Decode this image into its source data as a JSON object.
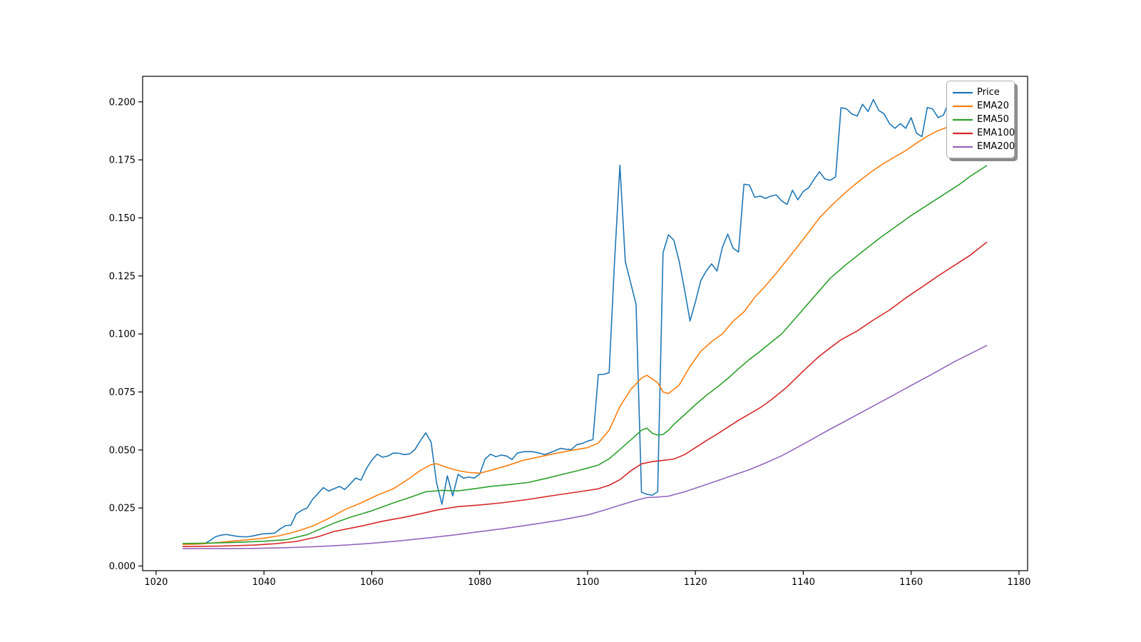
{
  "figure": {
    "background_color": "#ffffff",
    "spine_color": "#000000",
    "tick_label_color": "#000000"
  },
  "axes": {
    "x_ticks": [
      "1020",
      "1040",
      "1060",
      "1080",
      "1100",
      "1120",
      "1140",
      "1160",
      "1180"
    ],
    "x_tick_values": [
      1020,
      1040,
      1060,
      1080,
      1100,
      1120,
      1140,
      1160,
      1180
    ],
    "y_ticks": [
      "0.000",
      "0.025",
      "0.050",
      "0.075",
      "0.100",
      "0.125",
      "0.150",
      "0.175",
      "0.200"
    ],
    "y_tick_values": [
      0.0,
      0.025,
      0.05,
      0.075,
      0.1,
      0.125,
      0.15,
      0.175,
      0.2
    ]
  },
  "legend": {
    "position": "upper right",
    "items": [
      {
        "label": "Price",
        "color": "#1f77b4"
      },
      {
        "label": "EMA20",
        "color": "#ff7f0e"
      },
      {
        "label": "EMA50",
        "color": "#2ca02c"
      },
      {
        "label": "EMA100",
        "color": "#d62728"
      },
      {
        "label": "EMA200",
        "color": "#9467bd"
      }
    ]
  },
  "chart_data": {
    "type": "line",
    "title": "",
    "xlabel": "",
    "ylabel": "",
    "grid": false,
    "legend_position": "upper right",
    "xlim": [
      1017.5,
      1181.6
    ],
    "ylim": [
      -0.002,
      0.211
    ],
    "series": [
      {
        "name": "Price",
        "color": "#1f77b4",
        "x": [
          1025,
          1026,
          1027,
          1028,
          1029,
          1030,
          1031,
          1032,
          1033,
          1034,
          1035,
          1036,
          1037,
          1038,
          1039,
          1040,
          1041,
          1042,
          1043,
          1044,
          1045,
          1046,
          1047,
          1048,
          1049,
          1050,
          1051,
          1052,
          1053,
          1054,
          1055,
          1056,
          1057,
          1058,
          1059,
          1060,
          1061,
          1062,
          1063,
          1064,
          1065,
          1066,
          1067,
          1068,
          1069,
          1070,
          1071,
          1072,
          1073,
          1074,
          1075,
          1076,
          1077,
          1078,
          1079,
          1080,
          1081,
          1082,
          1083,
          1084,
          1085,
          1086,
          1087,
          1088,
          1089,
          1090,
          1091,
          1092,
          1093,
          1094,
          1095,
          1096,
          1097,
          1098,
          1099,
          1100,
          1101,
          1102,
          1103,
          1104,
          1105,
          1106,
          1107,
          1108,
          1109,
          1110,
          1111,
          1112,
          1113,
          1114,
          1115,
          1116,
          1117,
          1118,
          1119,
          1120,
          1121,
          1122,
          1123,
          1124,
          1125,
          1126,
          1127,
          1128,
          1129,
          1130,
          1131,
          1132,
          1133,
          1134,
          1135,
          1136,
          1137,
          1138,
          1139,
          1140,
          1141,
          1142,
          1143,
          1144,
          1145,
          1146,
          1147,
          1148,
          1149,
          1150,
          1151,
          1152,
          1153,
          1154,
          1155,
          1156,
          1157,
          1158,
          1159,
          1160,
          1161,
          1162,
          1163,
          1164,
          1165,
          1166,
          1167,
          1168,
          1169,
          1170,
          1171,
          1172,
          1173,
          1174
        ],
        "y": [
          0.0095,
          0.0095,
          0.0094,
          0.0095,
          0.0096,
          0.011,
          0.0126,
          0.0133,
          0.0136,
          0.0132,
          0.0128,
          0.0126,
          0.0126,
          0.013,
          0.0135,
          0.0139,
          0.014,
          0.0142,
          0.016,
          0.0174,
          0.0176,
          0.0225,
          0.024,
          0.025,
          0.0287,
          0.0312,
          0.0338,
          0.0323,
          0.0333,
          0.0343,
          0.033,
          0.0354,
          0.0379,
          0.037,
          0.042,
          0.0456,
          0.0482,
          0.0469,
          0.0474,
          0.0487,
          0.0486,
          0.048,
          0.0483,
          0.0502,
          0.054,
          0.0574,
          0.0533,
          0.0359,
          0.0266,
          0.0389,
          0.0302,
          0.0395,
          0.0379,
          0.0383,
          0.0379,
          0.0396,
          0.0461,
          0.0482,
          0.0471,
          0.0478,
          0.0474,
          0.0459,
          0.0487,
          0.0492,
          0.0493,
          0.0492,
          0.0487,
          0.048,
          0.0488,
          0.0497,
          0.0507,
          0.0503,
          0.0502,
          0.0523,
          0.0528,
          0.0538,
          0.0545,
          0.0825,
          0.0826,
          0.0833,
          0.131,
          0.1727,
          0.1312,
          0.122,
          0.1127,
          0.0318,
          0.0309,
          0.0305,
          0.032,
          0.135,
          0.1427,
          0.1404,
          0.1312,
          0.1189,
          0.1056,
          0.1138,
          0.123,
          0.1271,
          0.1302,
          0.1271,
          0.1373,
          0.143,
          0.1369,
          0.1353,
          0.1645,
          0.1642,
          0.1589,
          0.1594,
          0.1584,
          0.1594,
          0.1599,
          0.1573,
          0.1558,
          0.1619,
          0.1578,
          0.1614,
          0.163,
          0.1666,
          0.1699,
          0.1668,
          0.1662,
          0.1677,
          0.1975,
          0.197,
          0.1948,
          0.1939,
          0.199,
          0.1958,
          0.201,
          0.1963,
          0.1948,
          0.1906,
          0.1886,
          0.1906,
          0.1886,
          0.1932,
          0.1865,
          0.185,
          0.1976,
          0.1969,
          0.1932,
          0.1943,
          0.2,
          0.2035,
          0.198,
          0.2005,
          0.1955,
          0.1985,
          0.193,
          0.197
        ]
      },
      {
        "name": "EMA20",
        "color": "#ff7f0e",
        "x": [
          1025,
          1028,
          1031,
          1034,
          1037,
          1040,
          1043,
          1046,
          1049,
          1052,
          1055,
          1058,
          1061,
          1064,
          1067,
          1069,
          1071,
          1072,
          1074,
          1076,
          1078,
          1080,
          1082,
          1085,
          1088,
          1091,
          1094,
          1097,
          1100,
          1102,
          1104,
          1106,
          1108,
          1110,
          1111,
          1113,
          1114,
          1115,
          1117,
          1119,
          1121,
          1123,
          1125,
          1127,
          1129,
          1131,
          1133,
          1135,
          1137,
          1139,
          1141,
          1143,
          1145,
          1147,
          1149,
          1151,
          1153,
          1155,
          1157,
          1159,
          1161,
          1163,
          1165,
          1167,
          1170,
          1174
        ],
        "y": [
          0.0093,
          0.0095,
          0.01,
          0.0107,
          0.0113,
          0.012,
          0.0131,
          0.0149,
          0.0172,
          0.0205,
          0.0243,
          0.0272,
          0.0305,
          0.0333,
          0.0378,
          0.0412,
          0.0437,
          0.0441,
          0.0424,
          0.0411,
          0.0403,
          0.04,
          0.0412,
          0.0432,
          0.0455,
          0.047,
          0.0485,
          0.0498,
          0.051,
          0.053,
          0.0585,
          0.0687,
          0.076,
          0.081,
          0.0822,
          0.079,
          0.075,
          0.0743,
          0.078,
          0.086,
          0.0925,
          0.0967,
          0.1,
          0.1055,
          0.1095,
          0.1158,
          0.1207,
          0.1262,
          0.132,
          0.1378,
          0.1438,
          0.15,
          0.1548,
          0.1592,
          0.1633,
          0.167,
          0.1705,
          0.1736,
          0.1763,
          0.179,
          0.1822,
          0.1852,
          0.1876,
          0.1893,
          0.1905,
          0.1918
        ]
      },
      {
        "name": "EMA50",
        "color": "#2ca02c",
        "x": [
          1025,
          1030,
          1035,
          1040,
          1044,
          1048,
          1051,
          1053,
          1056,
          1060,
          1064,
          1067,
          1070,
          1073,
          1076,
          1079,
          1082,
          1086,
          1089,
          1092,
          1095,
          1098,
          1100,
          1102,
          1104,
          1106,
          1108,
          1110,
          1111,
          1112,
          1113,
          1114,
          1115,
          1116,
          1118,
          1120,
          1122,
          1124,
          1126,
          1128,
          1130,
          1132,
          1134,
          1136,
          1139,
          1142,
          1145,
          1148,
          1151,
          1154,
          1157,
          1160,
          1163,
          1166,
          1169,
          1171,
          1174
        ],
        "y": [
          0.0097,
          0.0099,
          0.0102,
          0.0107,
          0.0113,
          0.0135,
          0.0165,
          0.0185,
          0.021,
          0.0238,
          0.0272,
          0.0295,
          0.032,
          0.0326,
          0.0324,
          0.0333,
          0.0343,
          0.0352,
          0.036,
          0.0376,
          0.0393,
          0.041,
          0.0422,
          0.0435,
          0.0462,
          0.0502,
          0.0543,
          0.0585,
          0.0594,
          0.0572,
          0.0564,
          0.0567,
          0.0585,
          0.061,
          0.0652,
          0.0695,
          0.0735,
          0.077,
          0.0808,
          0.085,
          0.089,
          0.0925,
          0.0963,
          0.1,
          0.108,
          0.116,
          0.124,
          0.13,
          0.1355,
          0.141,
          0.146,
          0.151,
          0.1555,
          0.16,
          0.1645,
          0.168,
          0.1725
        ]
      },
      {
        "name": "EMA100",
        "color": "#d62728",
        "x": [
          1025,
          1032,
          1038,
          1042,
          1046,
          1050,
          1053,
          1058,
          1062,
          1066,
          1070,
          1072,
          1076,
          1080,
          1084,
          1089,
          1094,
          1099,
          1102,
          1104,
          1106,
          1108,
          1110,
          1112,
          1114,
          1116,
          1118,
          1120,
          1122,
          1124,
          1126,
          1128,
          1130,
          1132,
          1134,
          1137,
          1140,
          1143,
          1147,
          1150,
          1153,
          1156,
          1159,
          1162,
          1165,
          1168,
          1171,
          1174
        ],
        "y": [
          0.0084,
          0.0086,
          0.009,
          0.0096,
          0.0106,
          0.0126,
          0.0149,
          0.0172,
          0.0193,
          0.021,
          0.023,
          0.0241,
          0.0256,
          0.0263,
          0.0272,
          0.0287,
          0.0305,
          0.0322,
          0.0333,
          0.0348,
          0.0372,
          0.041,
          0.044,
          0.045,
          0.0455,
          0.0461,
          0.048,
          0.051,
          0.054,
          0.0568,
          0.0598,
          0.0628,
          0.0655,
          0.0682,
          0.0715,
          0.0772,
          0.084,
          0.0905,
          0.0975,
          0.1013,
          0.106,
          0.1103,
          0.1155,
          0.1202,
          0.125,
          0.1295,
          0.134,
          0.1395
        ]
      },
      {
        "name": "EMA200",
        "color": "#9467bd",
        "x": [
          1025,
          1032,
          1038,
          1044,
          1050,
          1055,
          1060,
          1065,
          1070,
          1075,
          1080,
          1085,
          1090,
          1095,
          1100,
          1103,
          1106,
          1109,
          1111,
          1113,
          1115,
          1118,
          1121,
          1124,
          1127,
          1130,
          1133,
          1136,
          1140,
          1144,
          1148,
          1152,
          1156,
          1160,
          1164,
          1168,
          1171,
          1174
        ],
        "y": [
          0.0075,
          0.0075,
          0.0076,
          0.0079,
          0.0084,
          0.009,
          0.0098,
          0.0108,
          0.012,
          0.0133,
          0.0148,
          0.0163,
          0.018,
          0.0198,
          0.022,
          0.024,
          0.0262,
          0.0283,
          0.0295,
          0.0297,
          0.0301,
          0.032,
          0.0343,
          0.0367,
          0.0391,
          0.0415,
          0.0444,
          0.0475,
          0.0525,
          0.0577,
          0.0627,
          0.0677,
          0.0727,
          0.0778,
          0.0828,
          0.088,
          0.0915,
          0.095
        ]
      }
    ]
  }
}
